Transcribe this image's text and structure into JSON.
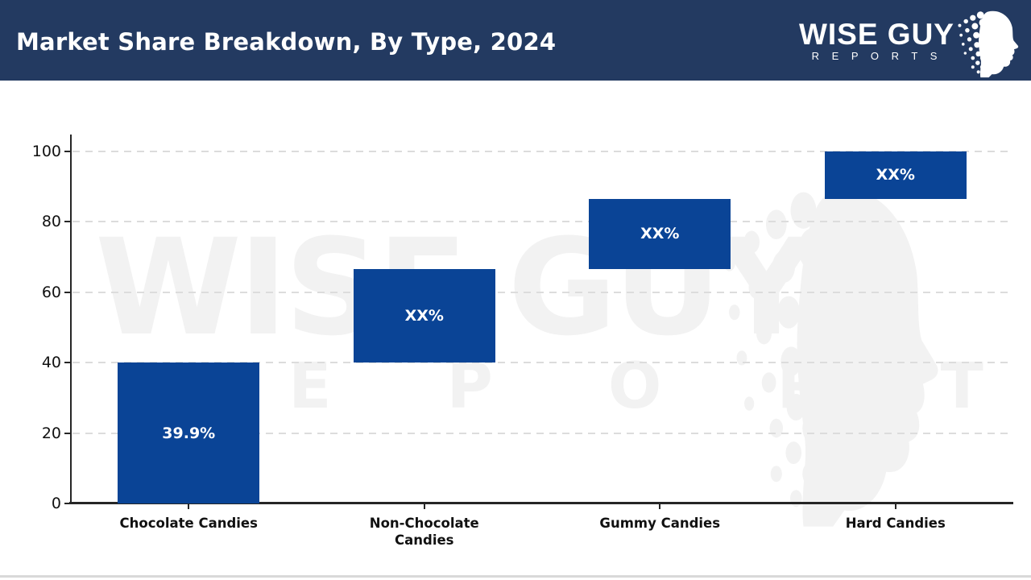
{
  "header": {
    "title": "Market Share Breakdown, By Type, 2024",
    "logo": {
      "line1": "WISE GUY",
      "line2": "R E P O R T S"
    }
  },
  "watermark": {
    "line1": "WISE GUY",
    "line2": "R E P O R T S"
  },
  "chart_data": {
    "type": "bar",
    "subtype": "waterfall",
    "title": "Market Share Breakdown, By Type, 2024",
    "categories": [
      "Chocolate Candies",
      "Non-Chocolate\nCandies",
      "Gummy Candies",
      "Hard Candies"
    ],
    "segments": [
      {
        "category": "Chocolate Candies",
        "start": 0,
        "end": 39.9,
        "value_label": "39.9%"
      },
      {
        "category": "Non-Chocolate Candies",
        "start": 39.9,
        "end": 66.6,
        "value_label": "XX%"
      },
      {
        "category": "Gummy Candies",
        "start": 66.6,
        "end": 86.5,
        "value_label": "XX%"
      },
      {
        "category": "Hard Candies",
        "start": 86.5,
        "end": 100,
        "value_label": "XX%"
      }
    ],
    "xlabel": "",
    "ylabel": "",
    "ylim": [
      0,
      100
    ],
    "yticks": [
      0,
      20,
      40,
      60,
      80,
      100
    ],
    "grid": "horizontal-dashed",
    "legend": "none"
  },
  "colors": {
    "header_bg": "#233a61",
    "bar": "#0a4496",
    "bar_label": "#ffffff",
    "axis": "#262626",
    "grid": "#dcdcdc",
    "tick_label": "#111111",
    "watermark": "#f2f2f2",
    "footer_line": "#d9d9d9"
  }
}
